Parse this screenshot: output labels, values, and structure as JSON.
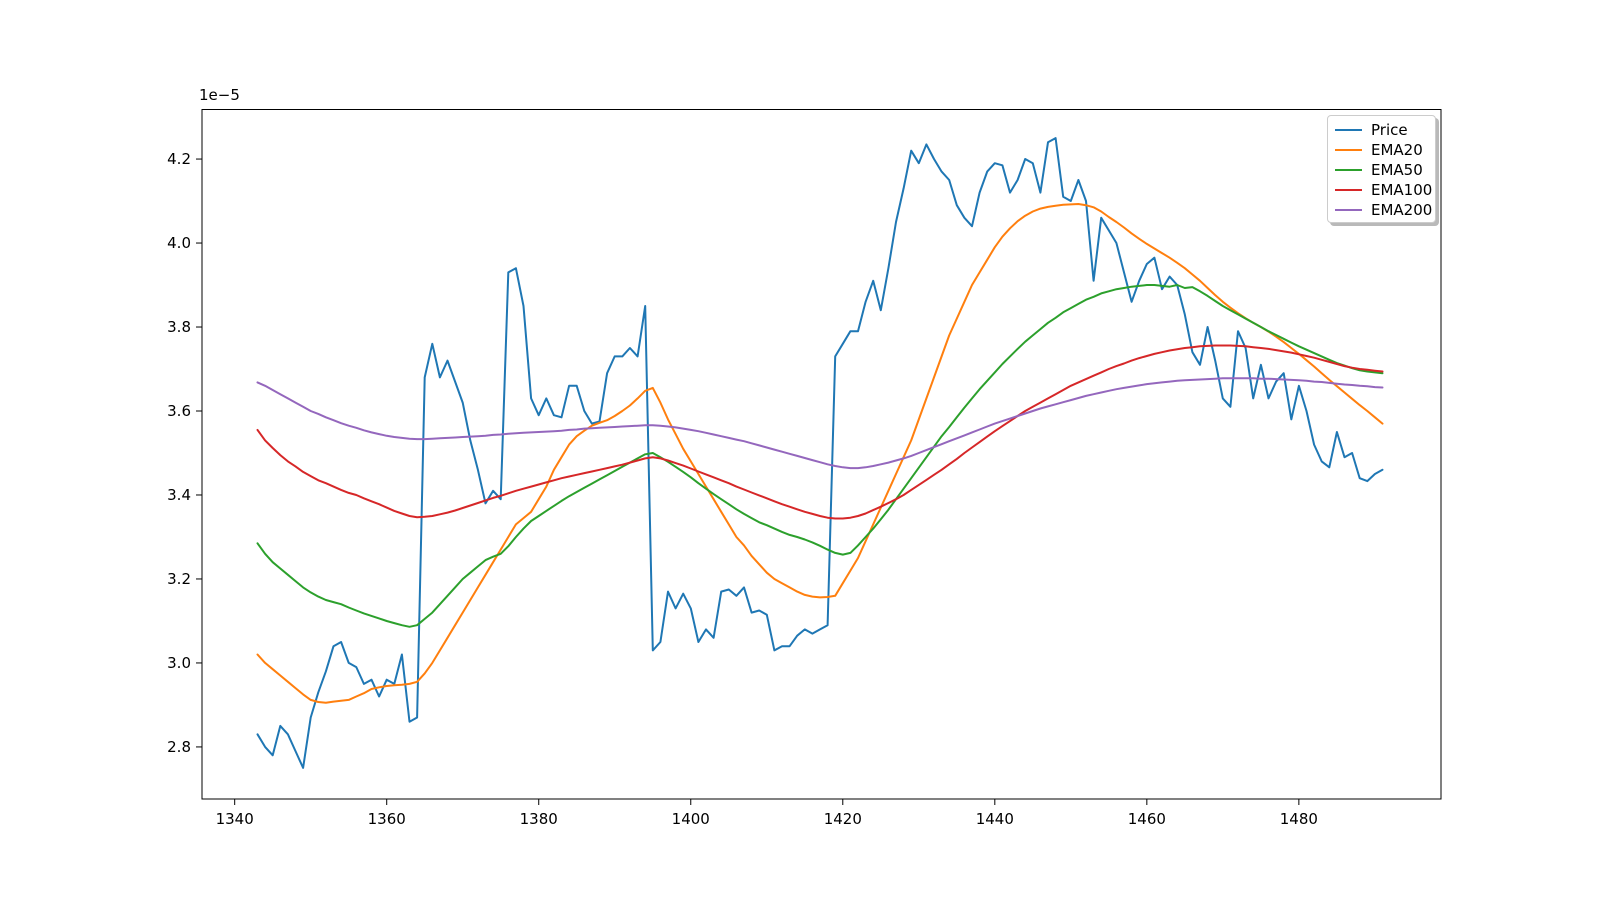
{
  "figure": {
    "background": "#ffffff"
  },
  "chart_data": {
    "type": "line",
    "title": "",
    "xlabel": "",
    "ylabel": "",
    "y_offset_label": "1e−5",
    "y_unit_scale": "1e-5",
    "grid": false,
    "legend_position": "upper right",
    "x_start": 1343,
    "x_step": 1,
    "xlim": [
      1335.7,
      1498.7
    ],
    "ylim": [
      2.676,
      4.318
    ],
    "xticks": [
      1340,
      1360,
      1380,
      1400,
      1420,
      1440,
      1460,
      1480
    ],
    "yticks": [
      2.8,
      3.0,
      3.2,
      3.4,
      3.6,
      3.8,
      4.0,
      4.2
    ],
    "series": [
      {
        "name": "Price",
        "color": "#1f77b4",
        "values": [
          2.83,
          2.8,
          2.78,
          2.85,
          2.83,
          2.79,
          2.75,
          2.87,
          2.93,
          2.98,
          3.04,
          3.05,
          3.0,
          2.99,
          2.95,
          2.96,
          2.92,
          2.96,
          2.95,
          3.02,
          2.86,
          2.87,
          3.68,
          3.76,
          3.68,
          3.72,
          3.67,
          3.62,
          3.53,
          3.46,
          3.38,
          3.41,
          3.39,
          3.93,
          3.94,
          3.85,
          3.63,
          3.59,
          3.63,
          3.59,
          3.585,
          3.66,
          3.66,
          3.6,
          3.57,
          3.575,
          3.69,
          3.73,
          3.73,
          3.75,
          3.73,
          3.85,
          3.03,
          3.05,
          3.17,
          3.13,
          3.165,
          3.13,
          3.05,
          3.08,
          3.06,
          3.17,
          3.175,
          3.16,
          3.18,
          3.12,
          3.125,
          3.115,
          3.03,
          3.04,
          3.04,
          3.065,
          3.08,
          3.07,
          3.08,
          3.09,
          3.73,
          3.76,
          3.79,
          3.79,
          3.86,
          3.91,
          3.84,
          3.94,
          4.05,
          4.13,
          4.22,
          4.19,
          4.235,
          4.2,
          4.17,
          4.15,
          4.09,
          4.06,
          4.04,
          4.12,
          4.17,
          4.19,
          4.185,
          4.12,
          4.15,
          4.2,
          4.19,
          4.12,
          4.24,
          4.25,
          4.11,
          4.1,
          4.15,
          4.1,
          3.91,
          4.06,
          4.03,
          4.0,
          3.93,
          3.86,
          3.91,
          3.95,
          3.965,
          3.89,
          3.92,
          3.9,
          3.83,
          3.74,
          3.71,
          3.8,
          3.72,
          3.63,
          3.61,
          3.79,
          3.75,
          3.63,
          3.71,
          3.63,
          3.67,
          3.69,
          3.58,
          3.66,
          3.6,
          3.52,
          3.48,
          3.466,
          3.55,
          3.49,
          3.5,
          3.44,
          3.433,
          3.45,
          3.46
        ]
      },
      {
        "name": "EMA20",
        "color": "#ff7f0e",
        "values": [
          3.02,
          3.0,
          2.985,
          2.97,
          2.955,
          2.94,
          2.925,
          2.912,
          2.907,
          2.905,
          2.908,
          2.91,
          2.912,
          2.92,
          2.928,
          2.938,
          2.942,
          2.945,
          2.947,
          2.948,
          2.95,
          2.955,
          2.975,
          3.0,
          3.03,
          3.06,
          3.09,
          3.12,
          3.15,
          3.18,
          3.21,
          3.24,
          3.27,
          3.3,
          3.33,
          3.345,
          3.36,
          3.39,
          3.42,
          3.46,
          3.49,
          3.52,
          3.54,
          3.553,
          3.565,
          3.572,
          3.578,
          3.588,
          3.6,
          3.613,
          3.63,
          3.648,
          3.655,
          3.62,
          3.58,
          3.545,
          3.51,
          3.48,
          3.45,
          3.42,
          3.39,
          3.36,
          3.33,
          3.3,
          3.28,
          3.255,
          3.235,
          3.215,
          3.2,
          3.19,
          3.18,
          3.17,
          3.162,
          3.158,
          3.156,
          3.157,
          3.16,
          3.19,
          3.22,
          3.25,
          3.29,
          3.33,
          3.37,
          3.41,
          3.45,
          3.49,
          3.53,
          3.58,
          3.63,
          3.68,
          3.73,
          3.78,
          3.82,
          3.86,
          3.9,
          3.93,
          3.96,
          3.99,
          4.015,
          4.035,
          4.052,
          4.065,
          4.075,
          4.082,
          4.086,
          4.089,
          4.091,
          4.092,
          4.093,
          4.09,
          4.085,
          4.075,
          4.062,
          4.05,
          4.037,
          4.023,
          4.01,
          3.998,
          3.987,
          3.976,
          3.965,
          3.953,
          3.94,
          3.925,
          3.91,
          3.893,
          3.876,
          3.86,
          3.846,
          3.833,
          3.821,
          3.81,
          3.8,
          3.789,
          3.777,
          3.764,
          3.75,
          3.736,
          3.721,
          3.706,
          3.69,
          3.674,
          3.659,
          3.644,
          3.629,
          3.614,
          3.6,
          3.585,
          3.57
        ]
      },
      {
        "name": "EMA50",
        "color": "#2ca02c",
        "values": [
          3.285,
          3.26,
          3.24,
          3.225,
          3.21,
          3.195,
          3.18,
          3.168,
          3.158,
          3.15,
          3.145,
          3.14,
          3.132,
          3.125,
          3.118,
          3.112,
          3.106,
          3.1,
          3.095,
          3.09,
          3.086,
          3.09,
          3.105,
          3.12,
          3.14,
          3.16,
          3.18,
          3.2,
          3.215,
          3.23,
          3.245,
          3.253,
          3.26,
          3.278,
          3.3,
          3.32,
          3.338,
          3.35,
          3.362,
          3.374,
          3.386,
          3.397,
          3.407,
          3.417,
          3.427,
          3.437,
          3.447,
          3.457,
          3.467,
          3.477,
          3.487,
          3.497,
          3.5,
          3.49,
          3.479,
          3.467,
          3.455,
          3.442,
          3.428,
          3.415,
          3.402,
          3.39,
          3.378,
          3.366,
          3.355,
          3.345,
          3.335,
          3.328,
          3.32,
          3.312,
          3.305,
          3.3,
          3.294,
          3.287,
          3.279,
          3.27,
          3.262,
          3.258,
          3.262,
          3.28,
          3.3,
          3.32,
          3.342,
          3.365,
          3.39,
          3.415,
          3.44,
          3.465,
          3.49,
          3.515,
          3.54,
          3.562,
          3.585,
          3.608,
          3.63,
          3.652,
          3.672,
          3.692,
          3.712,
          3.73,
          3.748,
          3.765,
          3.78,
          3.795,
          3.81,
          3.822,
          3.835,
          3.845,
          3.855,
          3.865,
          3.872,
          3.88,
          3.885,
          3.89,
          3.893,
          3.896,
          3.898,
          3.9,
          3.9,
          3.898,
          3.896,
          3.9,
          3.893,
          3.895,
          3.885,
          3.874,
          3.862,
          3.85,
          3.84,
          3.83,
          3.82,
          3.81,
          3.8,
          3.79,
          3.781,
          3.772,
          3.763,
          3.754,
          3.746,
          3.738,
          3.73,
          3.722,
          3.714,
          3.708,
          3.702,
          3.697,
          3.694,
          3.692,
          3.69
        ]
      },
      {
        "name": "EMA100",
        "color": "#d62728",
        "values": [
          3.555,
          3.53,
          3.512,
          3.495,
          3.48,
          3.468,
          3.455,
          3.445,
          3.435,
          3.428,
          3.42,
          3.412,
          3.405,
          3.4,
          3.392,
          3.385,
          3.378,
          3.37,
          3.362,
          3.356,
          3.35,
          3.347,
          3.348,
          3.35,
          3.354,
          3.358,
          3.363,
          3.369,
          3.375,
          3.381,
          3.387,
          3.393,
          3.398,
          3.404,
          3.41,
          3.415,
          3.42,
          3.425,
          3.43,
          3.435,
          3.44,
          3.444,
          3.448,
          3.452,
          3.456,
          3.46,
          3.464,
          3.468,
          3.472,
          3.477,
          3.482,
          3.487,
          3.49,
          3.487,
          3.482,
          3.476,
          3.47,
          3.463,
          3.456,
          3.449,
          3.442,
          3.435,
          3.428,
          3.42,
          3.413,
          3.406,
          3.399,
          3.392,
          3.385,
          3.378,
          3.372,
          3.366,
          3.36,
          3.355,
          3.35,
          3.346,
          3.344,
          3.344,
          3.346,
          3.35,
          3.356,
          3.364,
          3.372,
          3.381,
          3.39,
          3.4,
          3.412,
          3.424,
          3.436,
          3.448,
          3.46,
          3.473,
          3.486,
          3.5,
          3.513,
          3.526,
          3.539,
          3.552,
          3.564,
          3.576,
          3.588,
          3.6,
          3.61,
          3.62,
          3.63,
          3.64,
          3.65,
          3.66,
          3.668,
          3.676,
          3.684,
          3.692,
          3.7,
          3.707,
          3.713,
          3.72,
          3.726,
          3.731,
          3.736,
          3.74,
          3.744,
          3.747,
          3.75,
          3.752,
          3.754,
          3.755,
          3.756,
          3.756,
          3.756,
          3.755,
          3.754,
          3.752,
          3.75,
          3.748,
          3.745,
          3.742,
          3.739,
          3.735,
          3.731,
          3.727,
          3.722,
          3.717,
          3.712,
          3.707,
          3.703,
          3.7,
          3.698,
          3.696,
          3.694
        ]
      },
      {
        "name": "EMA200",
        "color": "#9467bd",
        "values": [
          3.668,
          3.66,
          3.65,
          3.64,
          3.63,
          3.62,
          3.61,
          3.6,
          3.593,
          3.585,
          3.578,
          3.571,
          3.565,
          3.56,
          3.554,
          3.549,
          3.545,
          3.541,
          3.538,
          3.536,
          3.534,
          3.533,
          3.533,
          3.534,
          3.535,
          3.536,
          3.537,
          3.538,
          3.539,
          3.54,
          3.541,
          3.543,
          3.544,
          3.546,
          3.547,
          3.548,
          3.549,
          3.55,
          3.551,
          3.552,
          3.553,
          3.555,
          3.556,
          3.558,
          3.559,
          3.56,
          3.561,
          3.562,
          3.563,
          3.564,
          3.565,
          3.566,
          3.566,
          3.565,
          3.563,
          3.561,
          3.558,
          3.555,
          3.552,
          3.548,
          3.544,
          3.54,
          3.536,
          3.532,
          3.528,
          3.523,
          3.518,
          3.513,
          3.508,
          3.503,
          3.498,
          3.493,
          3.488,
          3.483,
          3.478,
          3.473,
          3.469,
          3.466,
          3.464,
          3.464,
          3.466,
          3.469,
          3.473,
          3.477,
          3.482,
          3.487,
          3.493,
          3.5,
          3.507,
          3.514,
          3.521,
          3.528,
          3.535,
          3.542,
          3.549,
          3.556,
          3.563,
          3.57,
          3.576,
          3.582,
          3.588,
          3.594,
          3.6,
          3.606,
          3.611,
          3.616,
          3.621,
          3.626,
          3.631,
          3.636,
          3.64,
          3.644,
          3.648,
          3.652,
          3.655,
          3.658,
          3.661,
          3.664,
          3.666,
          3.668,
          3.67,
          3.672,
          3.673,
          3.674,
          3.675,
          3.676,
          3.677,
          3.678,
          3.678,
          3.678,
          3.678,
          3.678,
          3.677,
          3.677,
          3.676,
          3.675,
          3.674,
          3.673,
          3.672,
          3.67,
          3.669,
          3.667,
          3.665,
          3.663,
          3.662,
          3.66,
          3.659,
          3.657,
          3.656
        ]
      }
    ]
  },
  "legend": {
    "labels": [
      "Price",
      "EMA20",
      "EMA50",
      "EMA100",
      "EMA200"
    ]
  }
}
